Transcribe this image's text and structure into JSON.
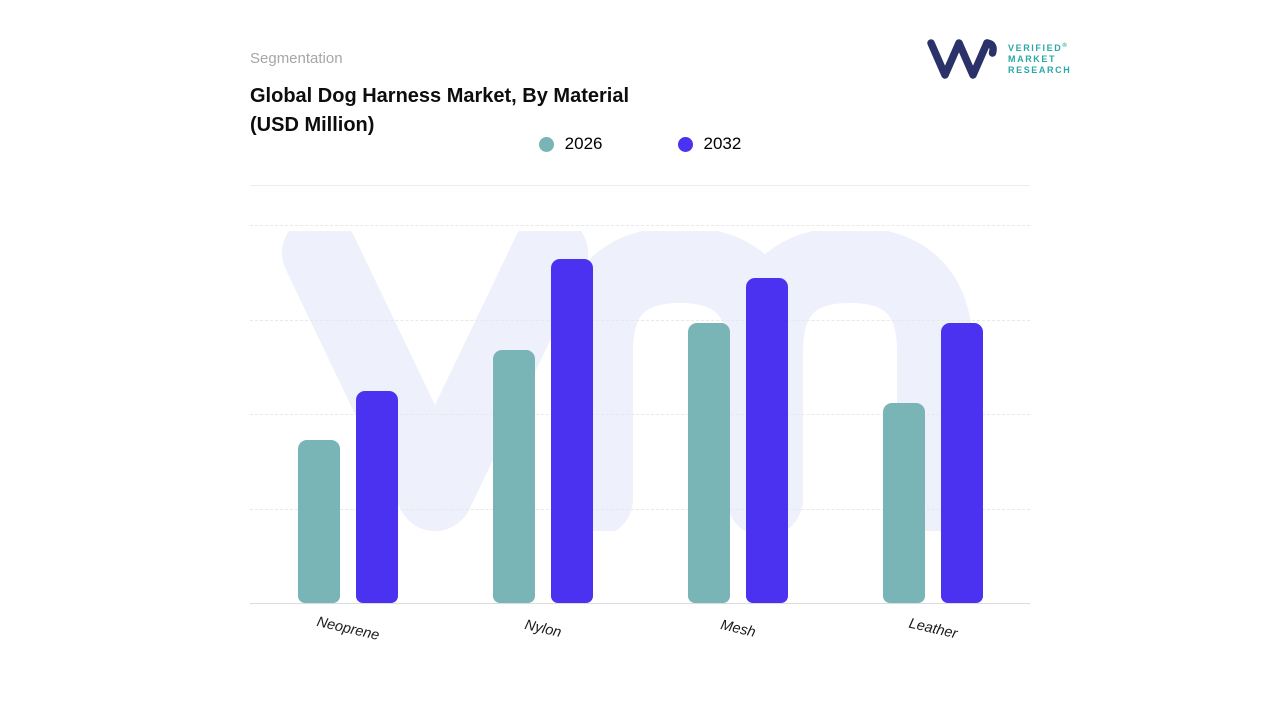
{
  "header": {
    "eyebrow": "Segmentation",
    "title_line1": "Global Dog Harness Market, By Material",
    "title_line2": "(USD Million)"
  },
  "logo": {
    "lines": [
      "VERIFIED",
      "MARKET",
      "RESEARCH"
    ],
    "reg": "®",
    "mark_color": "#2b3169",
    "text_color": "#2ba8a6"
  },
  "legend": [
    {
      "label": "2026",
      "color": "#79b4b6"
    },
    {
      "label": "2032",
      "color": "#4b31f0"
    }
  ],
  "chart_data": {
    "type": "bar",
    "title": "Global Dog Harness Market, By Material (USD Million)",
    "categories": [
      "Neoprene",
      "Nylon",
      "Mesh",
      "Leather"
    ],
    "series": [
      {
        "name": "2026",
        "color": "#79b4b6",
        "values": [
          43,
          67,
          74,
          53
        ]
      },
      {
        "name": "2032",
        "color": "#4b31f0",
        "values": [
          56,
          91,
          86,
          74
        ]
      }
    ],
    "xlabel": "",
    "ylabel": "USD Million",
    "ylim": [
      0,
      100
    ],
    "yticks_visible": false,
    "grid": "horizontal-dashed",
    "legend_position": "top-center",
    "watermark": "vm"
  },
  "colors": {
    "watermark": "#eef0fb",
    "gridline": "#e8e8e8",
    "baseline": "#dcdcdc"
  }
}
